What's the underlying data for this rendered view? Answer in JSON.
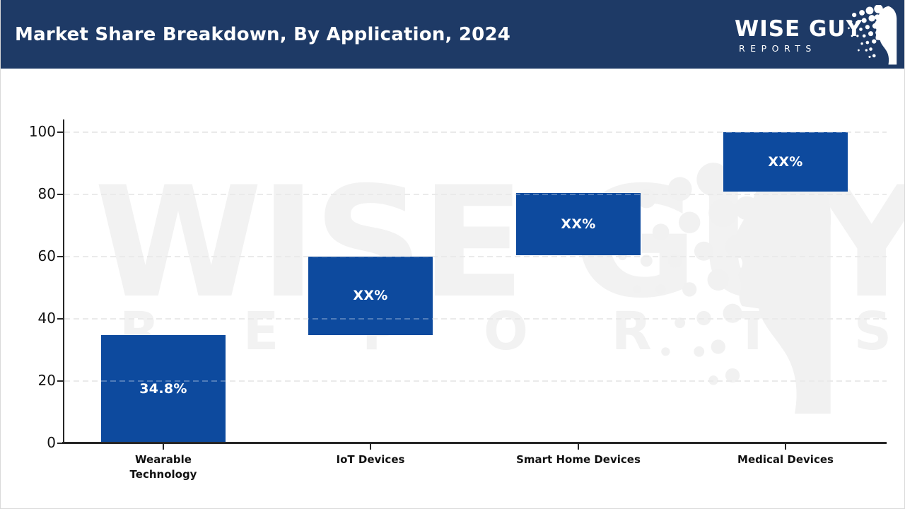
{
  "header": {
    "title": "Market Share Breakdown, By Application, 2024",
    "logo": {
      "line1": "WISE GUY",
      "line2": "REPORTS"
    }
  },
  "watermark": {
    "line1": "WISE GUY",
    "line2": "REPORTS"
  },
  "colors": {
    "header_bg": "#1e3a66",
    "bar": "#0d4a9e",
    "bar_label": "#ffffff",
    "axis": "#262626",
    "grid": "#e2e2e2",
    "tick_label": "#111111",
    "watermark": "#f2f2f2"
  },
  "chart_data": {
    "type": "bar",
    "subtype": "waterfall",
    "title": "Market Share Breakdown, By Application, 2024",
    "categories": [
      "Wearable Technology",
      "IoT Devices",
      "Smart Home Devices",
      "Medical Devices"
    ],
    "categories_display": [
      [
        "Wearable",
        "Technology"
      ],
      [
        "IoT Devices"
      ],
      [
        "Smart Home Devices"
      ],
      [
        "Medical Devices"
      ]
    ],
    "segments": [
      {
        "category": "Wearable Technology",
        "start": 0,
        "end": 34.8,
        "label": "34.8%"
      },
      {
        "category": "IoT Devices",
        "start": 34.8,
        "end": 60,
        "label": "XX%"
      },
      {
        "category": "Smart Home Devices",
        "start": 60.5,
        "end": 80.5,
        "label": "XX%"
      },
      {
        "category": "Medical Devices",
        "start": 81,
        "end": 100,
        "label": "XX%"
      }
    ],
    "ylim": [
      0,
      100
    ],
    "yticks": [
      0,
      20,
      40,
      60,
      80,
      100
    ],
    "grid": "dashed-horizontal",
    "legend": false
  }
}
